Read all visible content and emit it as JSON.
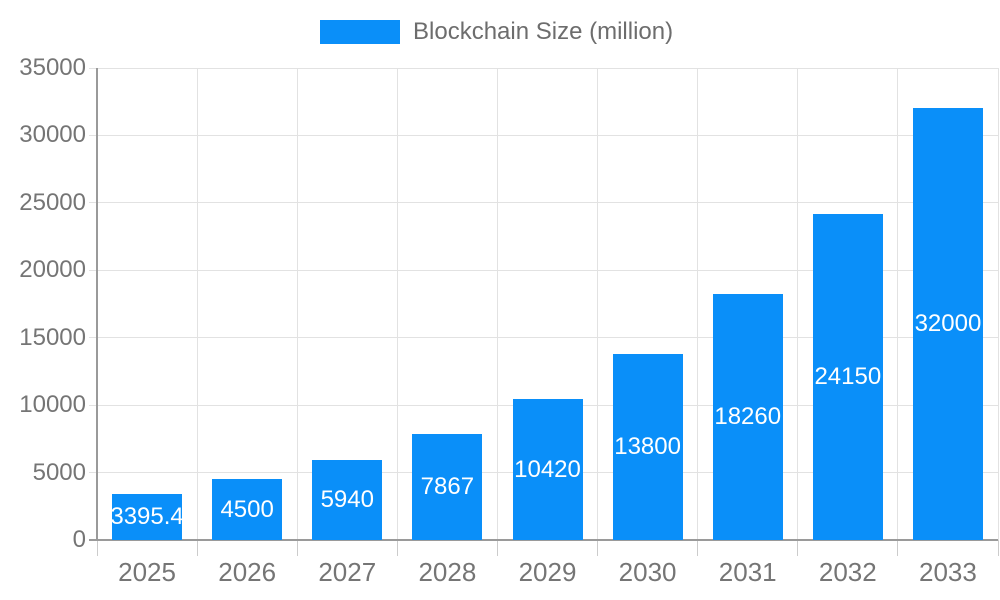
{
  "chart_data": {
    "type": "bar",
    "title": "Blockchain Size (million)",
    "legend": {
      "label": "Blockchain Size (million)",
      "position": "top-center"
    },
    "categories": [
      "2025",
      "2026",
      "2027",
      "2028",
      "2029",
      "2030",
      "2031",
      "2032",
      "2033"
    ],
    "series": [
      {
        "name": "Blockchain Size (million)",
        "values": [
          3395.4,
          4500,
          5940,
          7867,
          10420,
          13800,
          18260,
          24150,
          32000
        ]
      }
    ],
    "bar_labels": [
      "3395.4",
      "4500",
      "5940",
      "7867",
      "10420",
      "13800",
      "18260",
      "24150",
      "32000"
    ],
    "xlabel": "",
    "ylabel": "",
    "ylim": [
      0,
      35000
    ],
    "ytick_interval": 5000,
    "ytick_labels": [
      "0",
      "5000",
      "10000",
      "15000",
      "20000",
      "25000",
      "30000",
      "35000"
    ],
    "grid": "horizontal-and-vertical",
    "bar_label_position": "centered-inside-bar",
    "colors": {
      "bar": "#0a8ff9",
      "axis_line": "#9a9a9a",
      "gridline": "#e2e2e2",
      "tick": "#cccccc",
      "axis_text": "#757575",
      "legend_text": "#6d6d6d",
      "bar_label_text": "#ffffff",
      "background": "#ffffff"
    }
  }
}
